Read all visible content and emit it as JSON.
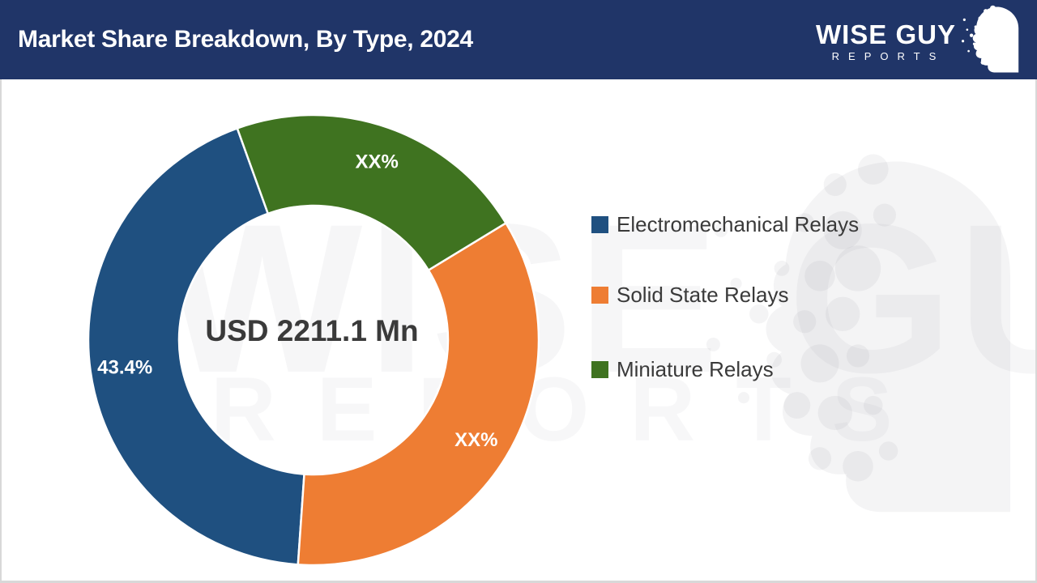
{
  "header": {
    "title": "Market Share Breakdown, By Type, 2024",
    "logo": {
      "line1": "WISE GUY",
      "line2": "REPORTS"
    }
  },
  "watermark": {
    "line1": "WISE GUY",
    "line2": "REPORTS"
  },
  "chart_data": {
    "type": "pie",
    "subtype": "donut",
    "title": "Market Share Breakdown, By Type, 2024",
    "center_label": "USD 2211.1 Mn",
    "start_angle_deg": 109.8,
    "direction": "ccw",
    "legend_position": "right",
    "segments": [
      {
        "name": "Electromechanical Relays",
        "slice_label": "43.4%",
        "value_pct": 43.4,
        "color": "#1F5080"
      },
      {
        "name": "Solid State Relays",
        "slice_label": "XX%",
        "value_pct": 34.8,
        "color": "#EE7D33"
      },
      {
        "name": "Miniature Relays",
        "slice_label": "XX%",
        "value_pct": 21.8,
        "color": "#3F7320"
      }
    ]
  },
  "colors": {
    "header_bg": "#203568",
    "title_text": "#FFFFFF",
    "body_text": "#3A3A3A",
    "border": "#D8D8D8"
  }
}
